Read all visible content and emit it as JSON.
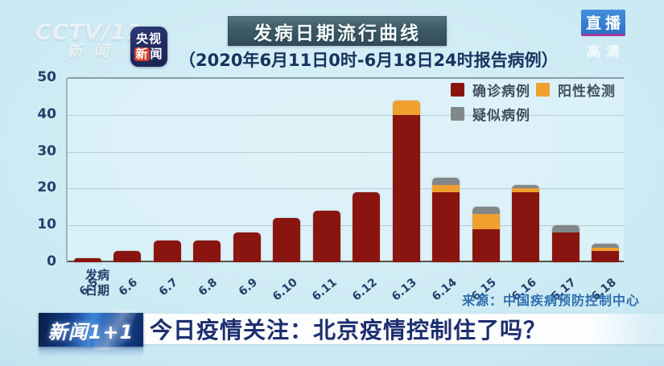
{
  "header": {
    "channel_watermark_line1": "CCTV/13",
    "channel_watermark_line2": "新闻",
    "app_logo": {
      "line1": "央视",
      "line2_first": "新",
      "line2_rest": "闻"
    },
    "title": "发病日期流行曲线",
    "subtitle": "（2020年6月11日0时-6月18日24时报告病例）",
    "live_badge": "直播",
    "hd_watermark": "高清"
  },
  "chart_data": {
    "type": "bar",
    "stacked": true,
    "title": "发病日期流行曲线",
    "subtitle": "（2020年6月11日0时-6月18日24时报告病例）",
    "xlabel": "发病日期",
    "ylabel": "",
    "ylim": [
      0,
      50
    ],
    "yticks": [
      0,
      10,
      20,
      30,
      40,
      50
    ],
    "grid": true,
    "legend_position": "top-right",
    "categories": [
      "6.5",
      "6.6",
      "6.7",
      "6.8",
      "6.9",
      "6.10",
      "6.11",
      "6.12",
      "6.13",
      "6.14",
      "6.15",
      "6.16",
      "6.17",
      "6.18"
    ],
    "series": [
      {
        "name": "确诊病例",
        "color": "#8a1510",
        "values": [
          1,
          3,
          6,
          6,
          8,
          12,
          14,
          19,
          40,
          19,
          9,
          19,
          8,
          3
        ]
      },
      {
        "name": "阳性检测",
        "color": "#efa02f",
        "values": [
          0,
          0,
          0,
          0,
          0,
          0,
          0,
          0,
          4,
          2,
          4,
          1,
          0,
          1
        ]
      },
      {
        "name": "疑似病例",
        "color": "#828789",
        "values": [
          0,
          0,
          0,
          0,
          0,
          0,
          0,
          0,
          0,
          2,
          2,
          1,
          2,
          1
        ]
      }
    ],
    "source": "来源：中国疾病预防控制中心"
  },
  "axis": {
    "x_title_line1": "发病",
    "x_title_line2": "日期"
  },
  "footer": {
    "program_logo": "新闻1+1",
    "headline": "今日疫情关注：北京疫情控制住了吗？"
  },
  "colors": {
    "background": "#c8e7f2",
    "banner": "#3d5b67",
    "navy_text": "#16335f",
    "confirmed_red": "#8a1510",
    "positive_orange": "#efa02f",
    "suspected_gray": "#828789",
    "source_blue": "#2e6fad",
    "headline_navy": "#1c2e6e",
    "live_blue": "#2b72c4",
    "live_underline": "#a93a9e"
  }
}
